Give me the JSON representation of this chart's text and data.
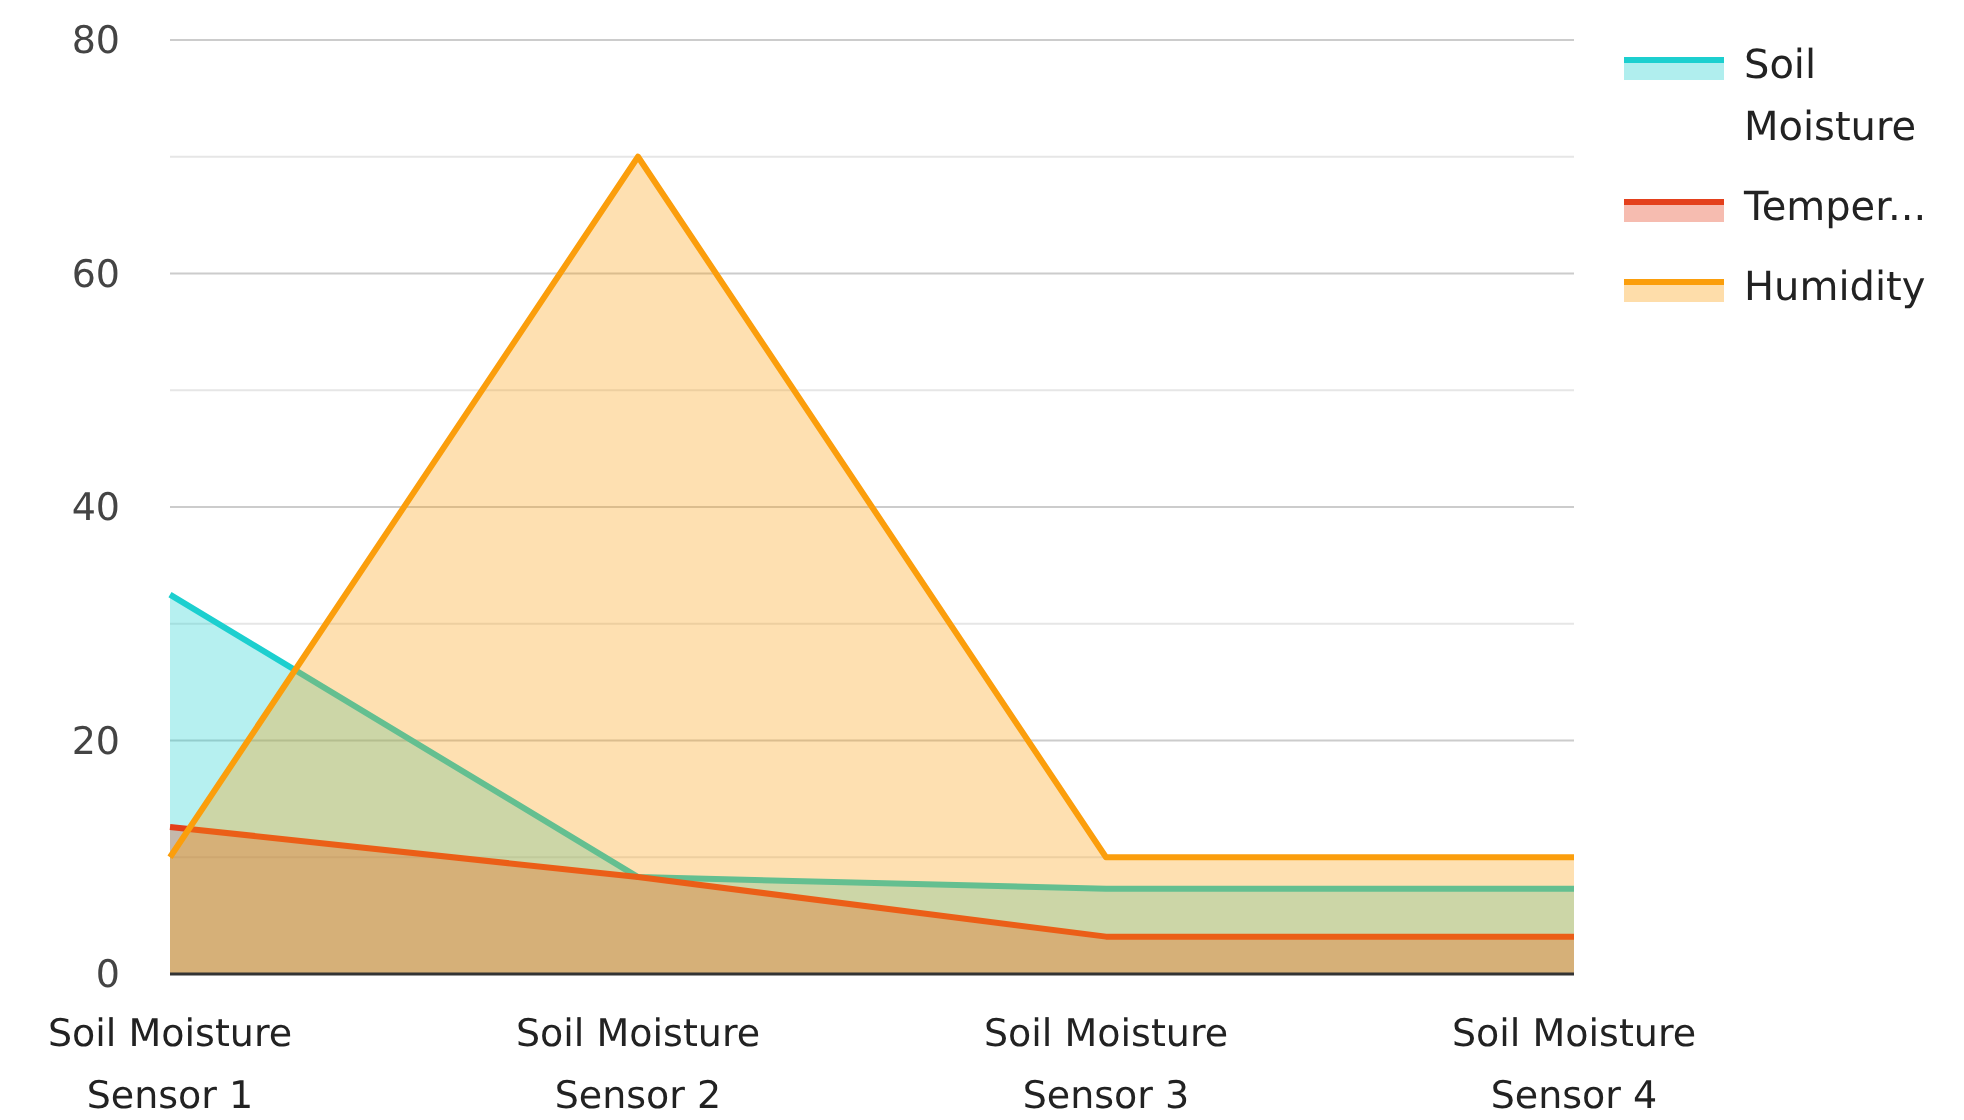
{
  "chart_data": {
    "type": "area",
    "categories": [
      "Soil Moisture Sensor 1",
      "Soil Moisture Sensor 2",
      "Soil Moisture Sensor 3",
      "Soil Moisture Sensor 4"
    ],
    "series": [
      {
        "name": "Soil Moisture",
        "color": "#1ccfcf",
        "values": [
          32.5,
          8.3,
          7.3,
          7.3
        ]
      },
      {
        "name": "Temper...",
        "color": "#e4401c",
        "values": [
          12.6,
          8.3,
          3.2,
          3.2
        ]
      },
      {
        "name": "Humidity",
        "color": "#fb9e0c",
        "values": [
          10,
          70,
          10,
          10
        ]
      }
    ],
    "ylim": [
      0,
      80
    ],
    "yticks": [
      0,
      {
        "value": 10,
        "label": null
      },
      20,
      {
        "value": 30,
        "label": null
      },
      40,
      {
        "value": 50,
        "label": null
      },
      60,
      {
        "value": 70,
        "label": null
      },
      80
    ],
    "grid": "y",
    "legend": "right"
  }
}
